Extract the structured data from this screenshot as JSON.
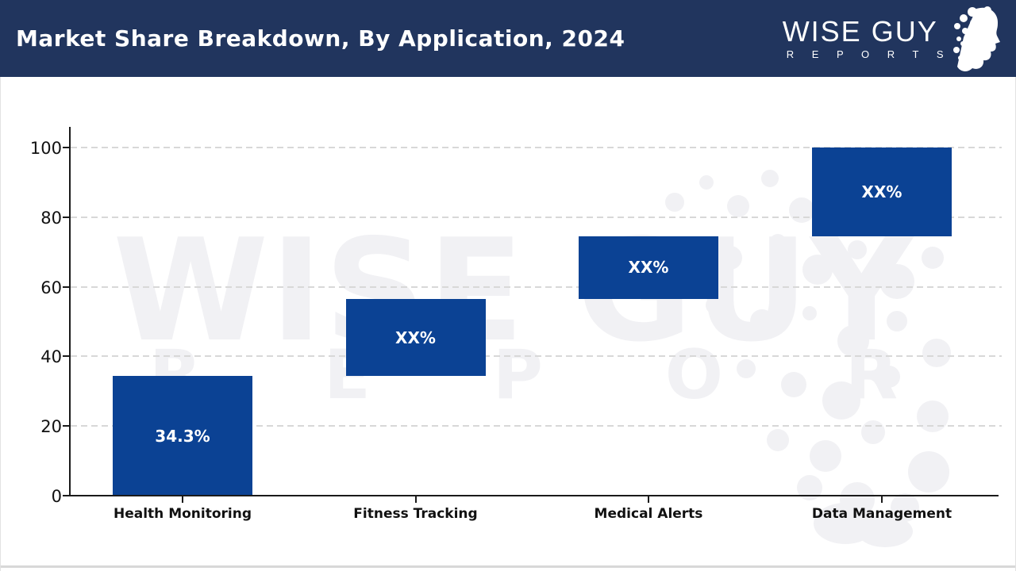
{
  "header": {
    "title": "Market Share Breakdown, By Application, 2024",
    "bg_color": "#21355E",
    "logo": {
      "line1": "WISE GUY",
      "line2": "R E P O R T S"
    }
  },
  "watermark": {
    "line1": "WISE GUY",
    "line2": "R E P O R T S"
  },
  "chart_data": {
    "type": "bar",
    "subtype": "waterfall-floating-bars",
    "title": "Market Share Breakdown, By Application, 2024",
    "categories": [
      "Health Monitoring",
      "Fitness Tracking",
      "Medical Alerts",
      "Data Management"
    ],
    "segments": [
      {
        "category": "Health Monitoring",
        "start": 0,
        "end": 34.3,
        "label": "34.3%"
      },
      {
        "category": "Fitness Tracking",
        "start": 34.3,
        "end": 56.5,
        "label": "XX%"
      },
      {
        "category": "Medical Alerts",
        "start": 56.5,
        "end": 74.5,
        "label": "XX%"
      },
      {
        "category": "Data Management",
        "start": 74.5,
        "end": 100,
        "label": "XX%"
      }
    ],
    "bar_color": "#0B4294",
    "label_color": "#FFFFFF",
    "xlabel": "",
    "ylabel": "",
    "ylim": [
      0,
      105
    ],
    "yticks": [
      0,
      20,
      40,
      60,
      80,
      100
    ],
    "grid": "horizontal dashed",
    "legend": "none"
  }
}
